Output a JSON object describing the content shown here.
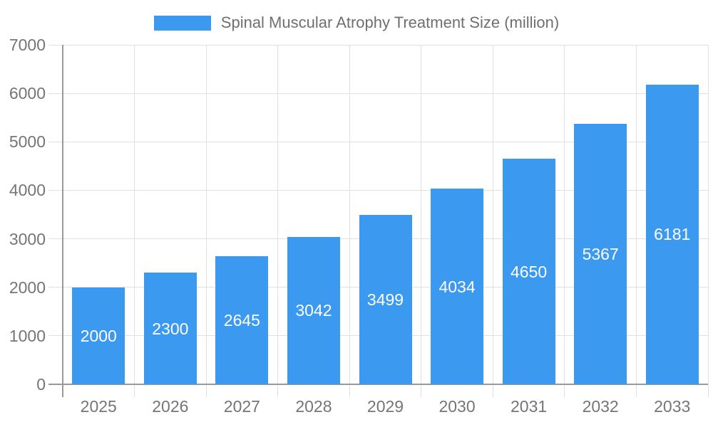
{
  "legend": {
    "label": "Spinal Muscular Atrophy Treatment Size (million)"
  },
  "chart_data": {
    "type": "bar",
    "title": "Spinal Muscular Atrophy Treatment Size (million)",
    "categories": [
      "2025",
      "2026",
      "2027",
      "2028",
      "2029",
      "2030",
      "2031",
      "2032",
      "2033"
    ],
    "values": [
      2000,
      2300,
      2645,
      3042,
      3499,
      4034,
      4650,
      5367,
      6181
    ],
    "xlabel": "",
    "ylabel": "",
    "ylim": [
      0,
      7000
    ],
    "yticks": [
      0,
      1000,
      2000,
      3000,
      4000,
      5000,
      6000,
      7000
    ],
    "grid": true,
    "legend_position": "top-center",
    "bar_value_labels": "inside-center"
  },
  "colors": {
    "bar": "#3b99f0",
    "bar_label": "#ffffff",
    "grid": "#e0e0e0",
    "axis_line": "#999999",
    "tick_text": "#757575",
    "title_text": "#6f6f6f",
    "background": "#ffffff"
  }
}
